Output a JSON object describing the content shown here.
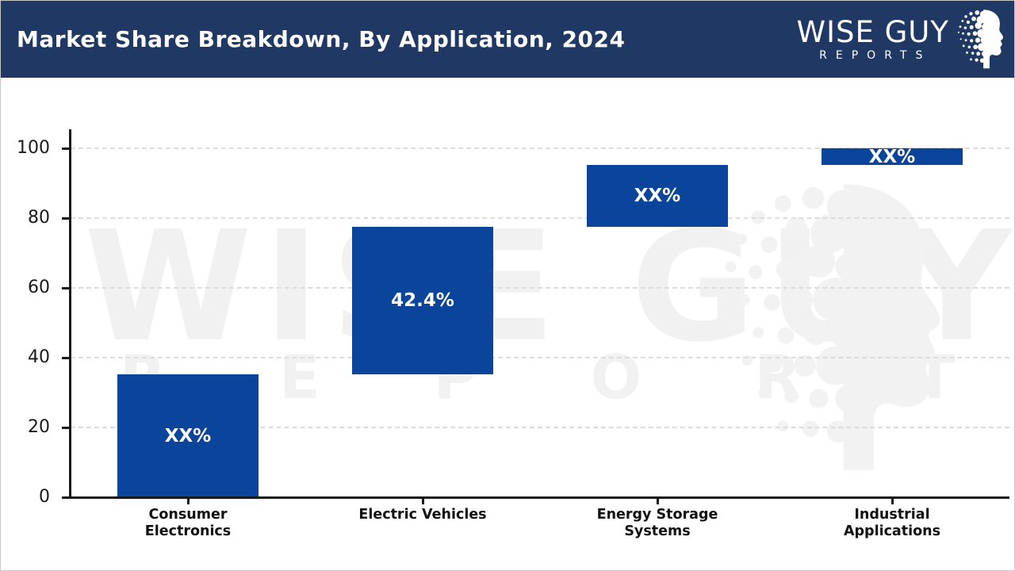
{
  "header": {
    "title": "Market Share Breakdown, By Application, 2024",
    "background_color": "#1f3864",
    "logo": {
      "name": "Wise Guy Reports",
      "line1": "WISE GUY",
      "line2": "REPORTS"
    }
  },
  "watermark": {
    "line1": "WISE GUY",
    "line2": "R E P O R T S"
  },
  "chart_data": {
    "type": "bar",
    "subtype": "waterfall",
    "title": "Market Share Breakdown, By Application, 2024",
    "categories": [
      "Consumer Electronics",
      "Electric Vehicles",
      "Energy Storage Systems",
      "Industrial Applications"
    ],
    "bars": [
      {
        "category": "Consumer Electronics",
        "lines": [
          "Consumer",
          "Electronics"
        ],
        "start": 0,
        "end": 35.2,
        "value": 35.2,
        "label": "XX%"
      },
      {
        "category": "Electric Vehicles",
        "lines": [
          "Electric Vehicles"
        ],
        "start": 35.2,
        "end": 77.6,
        "value": 42.4,
        "label": "42.4%"
      },
      {
        "category": "Energy Storage Systems",
        "lines": [
          "Energy Storage",
          "Systems"
        ],
        "start": 77.6,
        "end": 95.2,
        "value": 17.6,
        "label": "XX%"
      },
      {
        "category": "Industrial Applications",
        "lines": [
          "Industrial",
          "Applications"
        ],
        "start": 95.2,
        "end": 100.0,
        "value": 4.8,
        "label": "XX%"
      }
    ],
    "yticks": [
      0,
      20,
      40,
      60,
      80,
      100
    ],
    "ylim": [
      0,
      105
    ],
    "xlabel": "",
    "ylabel": "",
    "bar_color": "#0b459b",
    "grid": "horizontal-dashed",
    "legend": "none"
  }
}
